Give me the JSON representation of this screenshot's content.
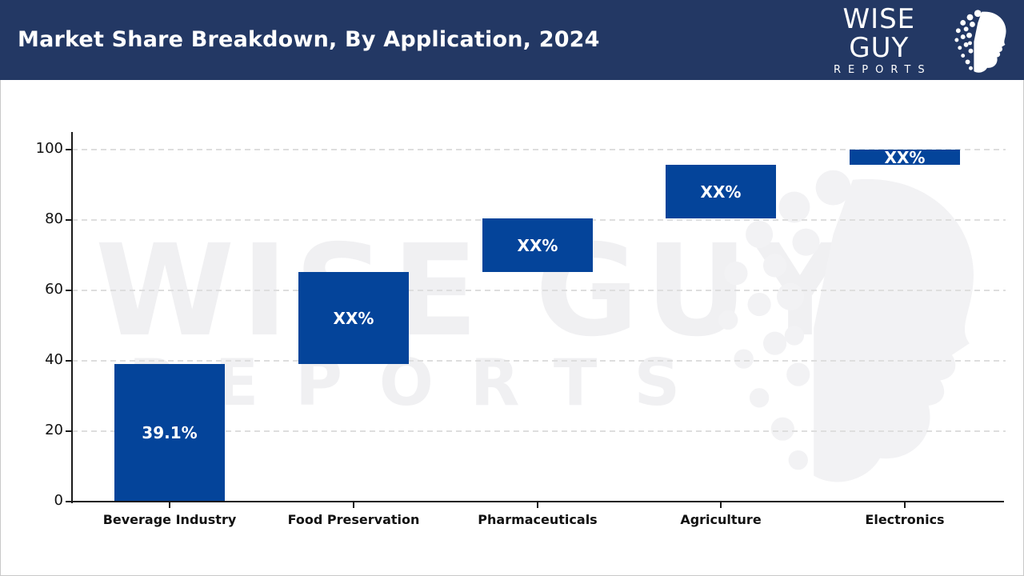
{
  "header": {
    "title": "Market Share Breakdown, By Application, 2024",
    "bg_color": "#233864",
    "logo": {
      "line1": "WISE GUY",
      "line2": "REPORTS"
    }
  },
  "watermark": {
    "line1": "WISE GUY",
    "line2": "REPORTS"
  },
  "chart_data": {
    "type": "bar",
    "subtype": "waterfall",
    "title": "Market Share Breakdown, By Application, 2024",
    "categories": [
      "Beverage Industry",
      "Food Preservation",
      "Pharmaceuticals",
      "Agriculture",
      "Electronics"
    ],
    "segments": [
      {
        "category": "Beverage Industry",
        "start": 0,
        "end": 39.1,
        "label": "39.1%"
      },
      {
        "category": "Food Preservation",
        "start": 39.1,
        "end": 65.2,
        "label": "XX%"
      },
      {
        "category": "Pharmaceuticals",
        "start": 65.2,
        "end": 80.4,
        "label": "XX%"
      },
      {
        "category": "Agriculture",
        "start": 80.4,
        "end": 95.6,
        "label": "XX%"
      },
      {
        "category": "Electronics",
        "start": 95.6,
        "end": 100,
        "label": "XX%"
      }
    ],
    "yticks": [
      0,
      20,
      40,
      60,
      80,
      100
    ],
    "ylim": [
      0,
      104
    ],
    "xlabel": "",
    "ylabel": "",
    "grid": "horizontal-dashed",
    "legend": "none",
    "bar_color": "#04449A",
    "bar_label_color": "#FFFFFF",
    "axis_color": "#1A1A1A",
    "gridline_color": "#DEDEDE",
    "watermark_color": "#F0F0F2"
  }
}
